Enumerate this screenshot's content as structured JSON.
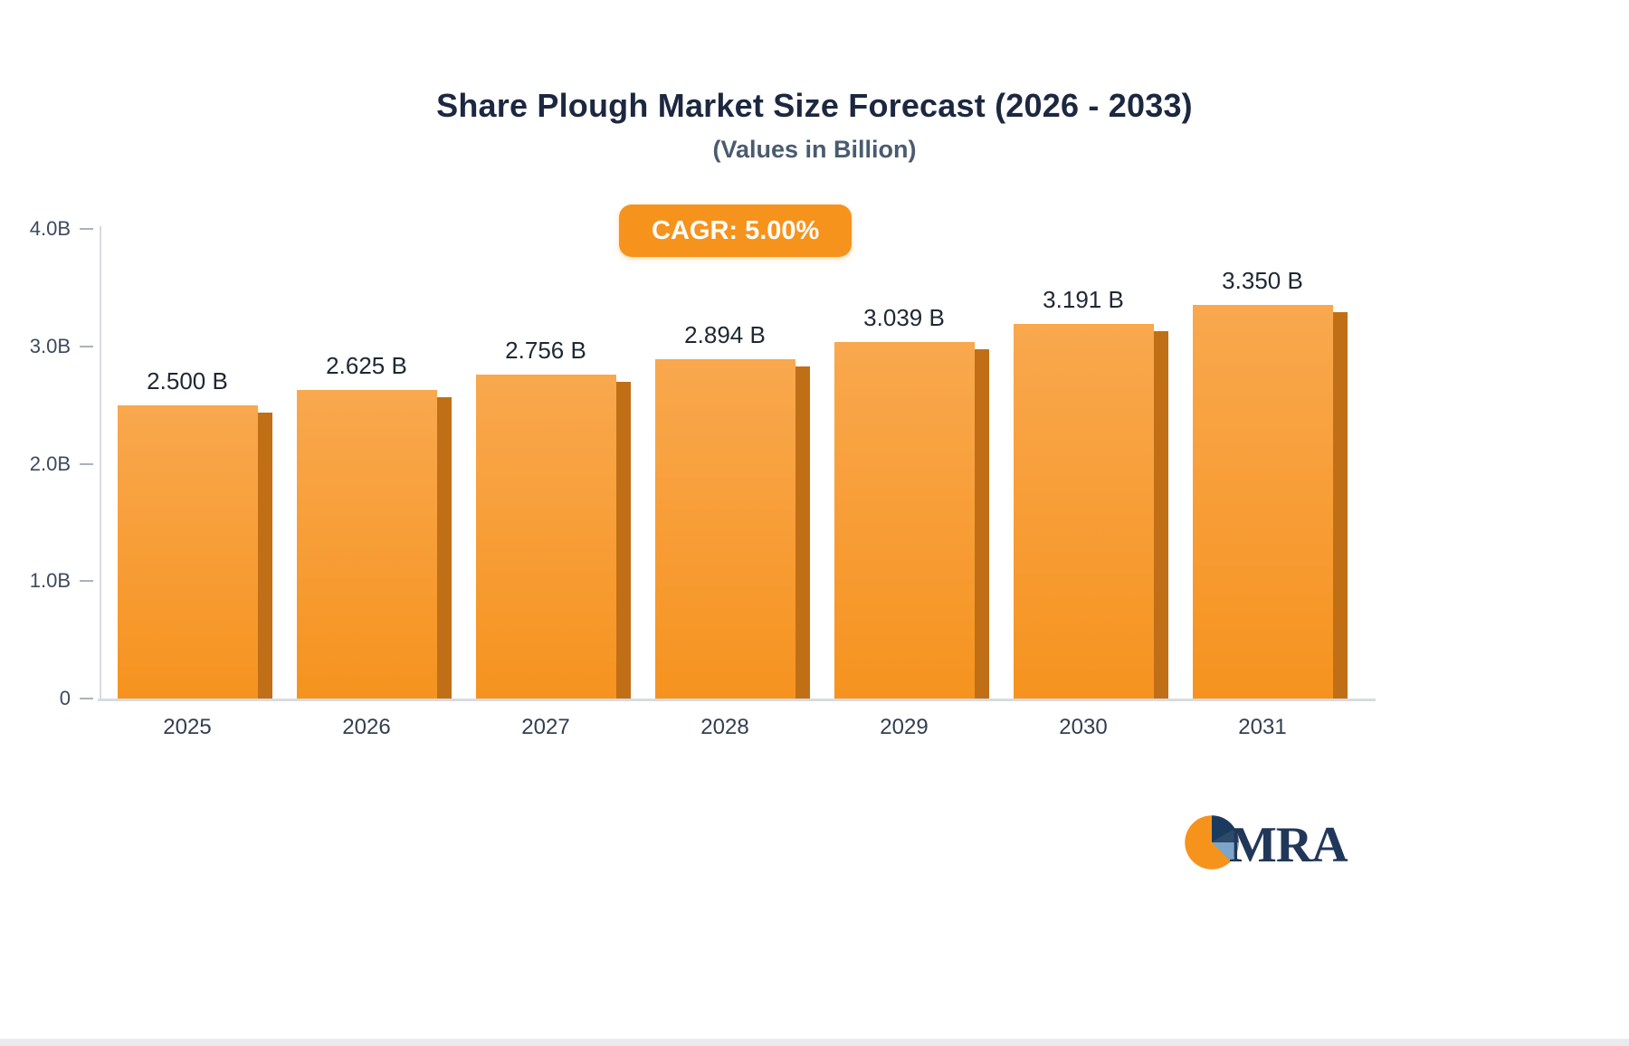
{
  "chart_data": {
    "type": "bar",
    "title": "Share Plough Market Size Forecast (2026 - 2033)",
    "subtitle": "(Values in Billion)",
    "cagr_label": "CAGR: 5.00%",
    "categories": [
      "2025",
      "2026",
      "2027",
      "2028",
      "2029",
      "2030",
      "2031"
    ],
    "values": [
      2.5,
      2.625,
      2.756,
      2.894,
      3.039,
      3.191,
      3.35
    ],
    "value_labels": [
      "2.500 B",
      "2.625 B",
      "2.756 B",
      "2.894 B",
      "3.039 B",
      "3.191 B",
      "3.350 B"
    ],
    "ylim": [
      0,
      4
    ],
    "y_tick_labels": [
      "0",
      "1.0B",
      "2.0B",
      "3.0B",
      "4.0B"
    ],
    "grid": false,
    "legend": "none",
    "bar_color": "#f6931f",
    "bar_color_top": "#f9a84e",
    "bar_side_color": "#c06f17",
    "badge_color": "#f6931d"
  },
  "logo": {
    "text": "MRA",
    "colors": {
      "orange": "#f6931d",
      "navy": "#1b3a5f",
      "steel_blue": "#7ba6c9",
      "dark": "#2c4a6b"
    }
  }
}
